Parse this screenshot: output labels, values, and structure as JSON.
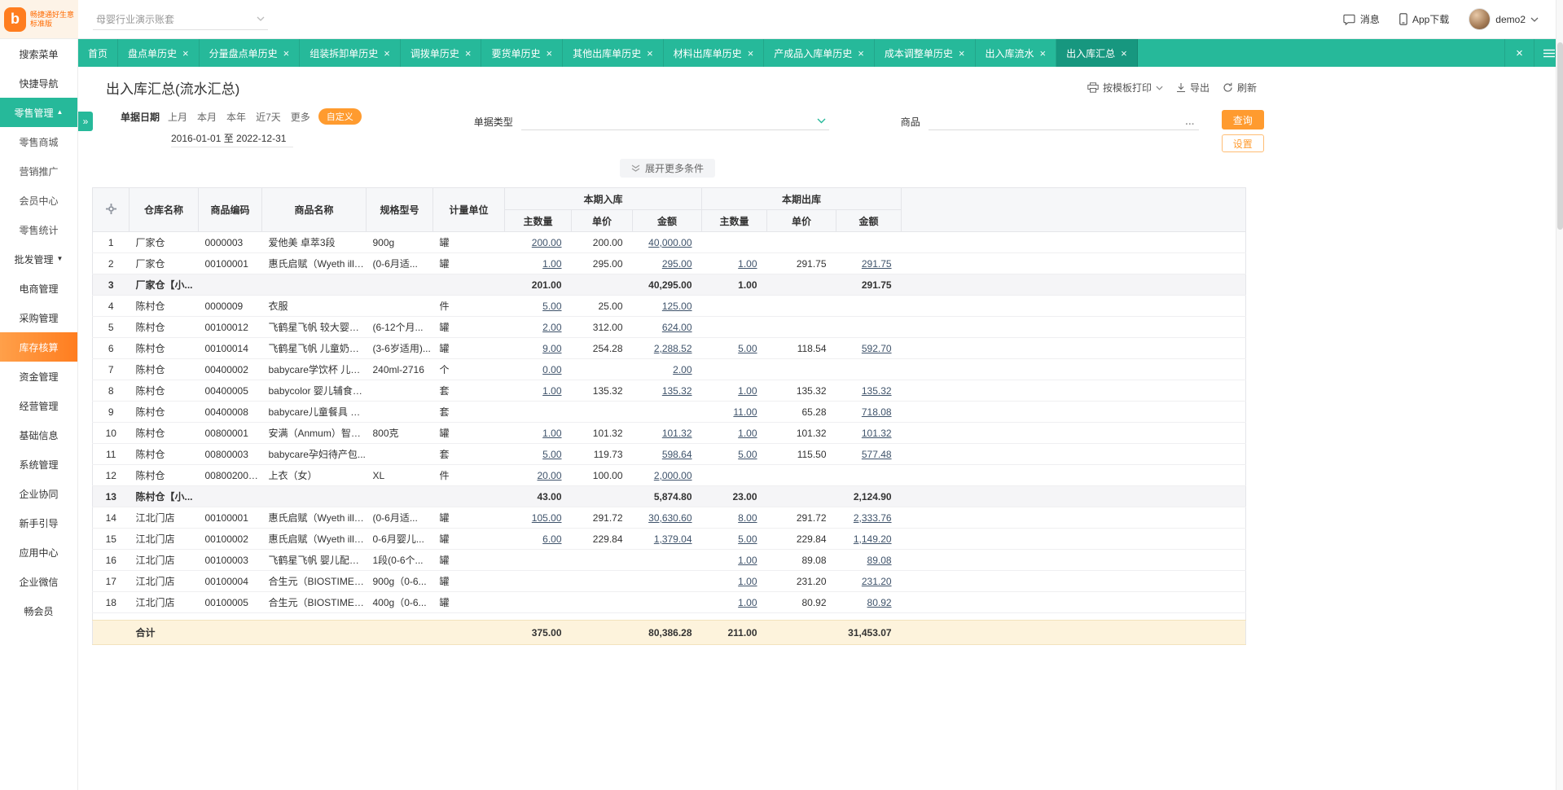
{
  "brand": {
    "product": "畅捷通好生意",
    "edition": "标准版"
  },
  "topbar": {
    "account": "母婴行业演示账套",
    "messages": "消息",
    "app_download": "App下载",
    "username": "demo2"
  },
  "sidebar": {
    "items": [
      {
        "label": "搜索菜单",
        "type": "normal"
      },
      {
        "label": "快捷导航",
        "type": "normal"
      },
      {
        "label": "零售管理",
        "type": "group-open"
      },
      {
        "label": "零售商城",
        "type": "sub"
      },
      {
        "label": "营销推广",
        "type": "sub"
      },
      {
        "label": "会员中心",
        "type": "sub"
      },
      {
        "label": "零售统计",
        "type": "sub"
      },
      {
        "label": "批发管理",
        "type": "group-closed"
      },
      {
        "label": "电商管理",
        "type": "normal"
      },
      {
        "label": "采购管理",
        "type": "normal"
      },
      {
        "label": "库存核算",
        "type": "active"
      },
      {
        "label": "资金管理",
        "type": "normal"
      },
      {
        "label": "经营管理",
        "type": "normal"
      },
      {
        "label": "基础信息",
        "type": "normal"
      },
      {
        "label": "系统管理",
        "type": "normal"
      },
      {
        "label": "企业协同",
        "type": "normal"
      },
      {
        "label": "新手引导",
        "type": "normal"
      },
      {
        "label": "应用中心",
        "type": "normal"
      },
      {
        "label": "企业微信",
        "type": "normal"
      },
      {
        "label": "畅会员",
        "type": "normal"
      }
    ]
  },
  "tabs": [
    {
      "label": "首页",
      "closable": false,
      "active": false
    },
    {
      "label": "盘点单历史",
      "closable": true,
      "active": false
    },
    {
      "label": "分量盘点单历史",
      "closable": true,
      "active": false
    },
    {
      "label": "组装拆卸单历史",
      "closable": true,
      "active": false
    },
    {
      "label": "调拨单历史",
      "closable": true,
      "active": false
    },
    {
      "label": "要货单历史",
      "closable": true,
      "active": false
    },
    {
      "label": "其他出库单历史",
      "closable": true,
      "active": false
    },
    {
      "label": "材料出库单历史",
      "closable": true,
      "active": false
    },
    {
      "label": "产成品入库单历史",
      "closable": true,
      "active": false
    },
    {
      "label": "成本调整单历史",
      "closable": true,
      "active": false
    },
    {
      "label": "出入库流水",
      "closable": true,
      "active": false
    },
    {
      "label": "出入库汇总",
      "closable": true,
      "active": true
    }
  ],
  "page": {
    "title": "出入库汇总(流水汇总)",
    "print": "按模板打印",
    "export": "导出",
    "refresh": "刷新"
  },
  "filters": {
    "date_label": "单据日期",
    "quick": [
      "上月",
      "本月",
      "本年",
      "近7天",
      "更多"
    ],
    "custom": "自定义",
    "date_range": "2016-01-01 至 2022-12-31",
    "type_label": "单据类型",
    "goods_label": "商品",
    "search": "查询",
    "settings": "设置",
    "expand_more": "展开更多条件"
  },
  "table": {
    "col_headers": [
      "仓库名称",
      "商品编码",
      "商品名称",
      "规格型号",
      "计量单位"
    ],
    "group_in": "本期入库",
    "group_out": "本期出库",
    "sub_headers": [
      "主数量",
      "单价",
      "金额"
    ],
    "total_label": "合计",
    "rows": [
      {
        "n": "1",
        "wh": "厂家仓",
        "code": "0000003",
        "name": "爱他美 卓萃3段",
        "spec": "900g",
        "unit": "罐",
        "in": [
          "200.00",
          "200.00",
          "40,000.00"
        ],
        "out": [
          "",
          "",
          ""
        ],
        "type": "data"
      },
      {
        "n": "2",
        "wh": "厂家仓",
        "code": "00100001",
        "name": "惠氏启赋（Wyeth illu...",
        "spec": "(0-6月适...",
        "unit": "罐",
        "in": [
          "1.00",
          "295.00",
          "295.00"
        ],
        "out": [
          "1.00",
          "291.75",
          "291.75"
        ],
        "type": "data"
      },
      {
        "n": "3",
        "wh": "厂家仓【小...",
        "code": "",
        "name": "",
        "spec": "",
        "unit": "",
        "in": [
          "201.00",
          "",
          "40,295.00"
        ],
        "out": [
          "1.00",
          "",
          "291.75"
        ],
        "type": "subtotal"
      },
      {
        "n": "4",
        "wh": "陈村仓",
        "code": "0000009",
        "name": "衣服",
        "spec": "",
        "unit": "件",
        "in": [
          "5.00",
          "25.00",
          "125.00"
        ],
        "out": [
          "",
          "",
          ""
        ],
        "type": "data"
      },
      {
        "n": "5",
        "wh": "陈村仓",
        "code": "00100012",
        "name": "飞鹤星飞帆 较大婴儿配...",
        "spec": "(6-12个月...",
        "unit": "罐",
        "in": [
          "2.00",
          "312.00",
          "624.00"
        ],
        "out": [
          "",
          "",
          ""
        ],
        "type": "data"
      },
      {
        "n": "6",
        "wh": "陈村仓",
        "code": "00100014",
        "name": "飞鹤星飞帆 儿童奶粉 4...",
        "spec": "(3-6岁适用)...",
        "unit": "罐",
        "in": [
          "9.00",
          "254.28",
          "2,288.52"
        ],
        "out": [
          "5.00",
          "118.54",
          "592.70"
        ],
        "type": "data"
      },
      {
        "n": "7",
        "wh": "陈村仓",
        "code": "00400002",
        "name": "babycare学饮杯 儿童...",
        "spec": "240ml-2716",
        "unit": "个",
        "in": [
          "0.00",
          "",
          "2.00"
        ],
        "out": [
          "",
          "",
          ""
        ],
        "type": "data"
      },
      {
        "n": "8",
        "wh": "陈村仓",
        "code": "00400005",
        "name": "babycolor 婴儿辅食机...",
        "spec": "",
        "unit": "套",
        "in": [
          "1.00",
          "135.32",
          "135.32"
        ],
        "out": [
          "1.00",
          "135.32",
          "135.32"
        ],
        "type": "data"
      },
      {
        "n": "9",
        "wh": "陈村仓",
        "code": "00400008",
        "name": "babycare儿童餐具 婴...",
        "spec": "",
        "unit": "套",
        "in": [
          "",
          "",
          ""
        ],
        "out": [
          "11.00",
          "65.28",
          "718.08"
        ],
        "type": "data"
      },
      {
        "n": "10",
        "wh": "陈村仓",
        "code": "00800001",
        "name": "安满（Anmum）智孕...",
        "spec": "800克",
        "unit": "罐",
        "in": [
          "1.00",
          "101.32",
          "101.32"
        ],
        "out": [
          "1.00",
          "101.32",
          "101.32"
        ],
        "type": "data"
      },
      {
        "n": "11",
        "wh": "陈村仓",
        "code": "00800003",
        "name": "babycare孕妇待产包...",
        "spec": "",
        "unit": "套",
        "in": [
          "5.00",
          "119.73",
          "598.64"
        ],
        "out": [
          "5.00",
          "115.50",
          "577.48"
        ],
        "type": "data"
      },
      {
        "n": "12",
        "wh": "陈村仓",
        "code": "008002000...",
        "name": "上衣（女）",
        "spec": "XL",
        "unit": "件",
        "in": [
          "20.00",
          "100.00",
          "2,000.00"
        ],
        "out": [
          "",
          "",
          ""
        ],
        "type": "data"
      },
      {
        "n": "13",
        "wh": "陈村仓【小...",
        "code": "",
        "name": "",
        "spec": "",
        "unit": "",
        "in": [
          "43.00",
          "",
          "5,874.80"
        ],
        "out": [
          "23.00",
          "",
          "2,124.90"
        ],
        "type": "subtotal"
      },
      {
        "n": "14",
        "wh": "江北门店",
        "code": "00100001",
        "name": "惠氏启赋（Wyeth illu...",
        "spec": "(0-6月适...",
        "unit": "罐",
        "in": [
          "105.00",
          "291.72",
          "30,630.60"
        ],
        "out": [
          "8.00",
          "291.72",
          "2,333.76"
        ],
        "type": "data"
      },
      {
        "n": "15",
        "wh": "江北门店",
        "code": "00100002",
        "name": "惠氏启赋（Wyeth illu...",
        "spec": "0-6月婴儿...",
        "unit": "罐",
        "in": [
          "6.00",
          "229.84",
          "1,379.04"
        ],
        "out": [
          "5.00",
          "229.84",
          "1,149.20"
        ],
        "type": "data"
      },
      {
        "n": "16",
        "wh": "江北门店",
        "code": "00100003",
        "name": "飞鹤星飞帆 婴儿配方奶...",
        "spec": "1段(0-6个...",
        "unit": "罐",
        "in": [
          "",
          "",
          ""
        ],
        "out": [
          "1.00",
          "89.08",
          "89.08"
        ],
        "type": "data"
      },
      {
        "n": "17",
        "wh": "江北门店",
        "code": "00100004",
        "name": "合生元（BIOSTIME）...",
        "spec": "900g（0-6...",
        "unit": "罐",
        "in": [
          "",
          "",
          ""
        ],
        "out": [
          "1.00",
          "231.20",
          "231.20"
        ],
        "type": "data"
      },
      {
        "n": "18",
        "wh": "江北门店",
        "code": "00100005",
        "name": "合生元（BIOSTIME）...",
        "spec": "400g（0-6...",
        "unit": "罐",
        "in": [
          "",
          "",
          ""
        ],
        "out": [
          "1.00",
          "80.92",
          "80.92"
        ],
        "type": "data"
      }
    ],
    "total": {
      "in": [
        "375.00",
        "",
        "80,386.28"
      ],
      "out": [
        "211.00",
        "",
        "31,453.07"
      ]
    }
  }
}
